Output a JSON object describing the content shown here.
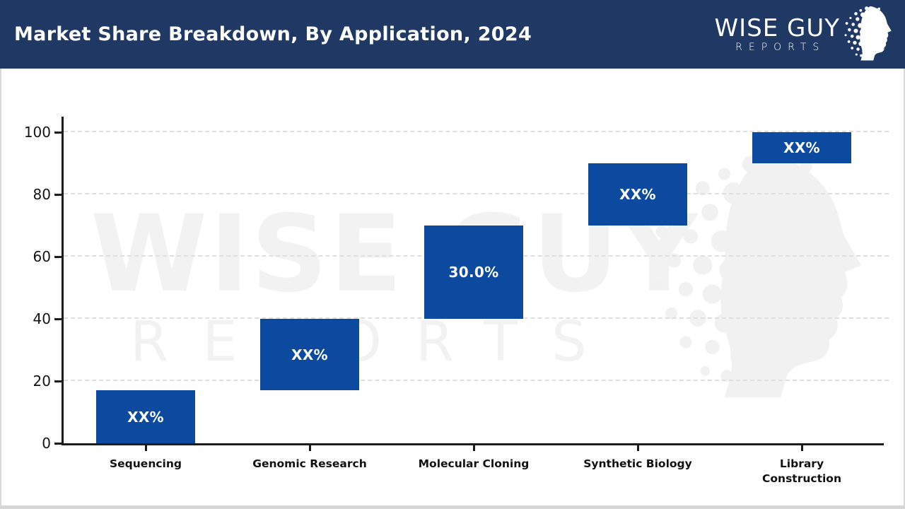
{
  "header": {
    "title": "Market Share Breakdown, By Application, 2024",
    "bg_color": "#1f3864",
    "logo": {
      "wordmark": "WISE GUY",
      "subtext": "REPORTS"
    }
  },
  "watermark": {
    "wordmark": "WISE GUY",
    "subtext": "REPORTS"
  },
  "chart_data": {
    "type": "bar",
    "subtype": "waterfall",
    "title": "Market Share Breakdown, By Application, 2024",
    "xlabel": "",
    "ylabel": "",
    "categories": [
      "Sequencing",
      "Genomic Research",
      "Molecular Cloning",
      "Synthetic Biology",
      "Library\nConstruction"
    ],
    "bars": [
      {
        "category": "Sequencing",
        "start": 0,
        "end": 17,
        "value_label": "XX%"
      },
      {
        "category": "Genomic Research",
        "start": 17,
        "end": 40,
        "value_label": "XX%"
      },
      {
        "category": "Molecular Cloning",
        "start": 40,
        "end": 70,
        "value_label": "30.0%"
      },
      {
        "category": "Synthetic Biology",
        "start": 70,
        "end": 90,
        "value_label": "XX%"
      },
      {
        "category": "Library\nConstruction",
        "start": 90,
        "end": 100,
        "value_label": "XX%"
      }
    ],
    "y_ticks": [
      0,
      20,
      40,
      60,
      80,
      100
    ],
    "ylim": [
      0,
      105
    ],
    "grid": "dashed-horizontal",
    "legend": "none",
    "bar_color": "#0b4a9e",
    "bar_label_color": "#ffffff",
    "axis_color": "#1c1c1c",
    "grid_color": "#dfdfdf"
  }
}
